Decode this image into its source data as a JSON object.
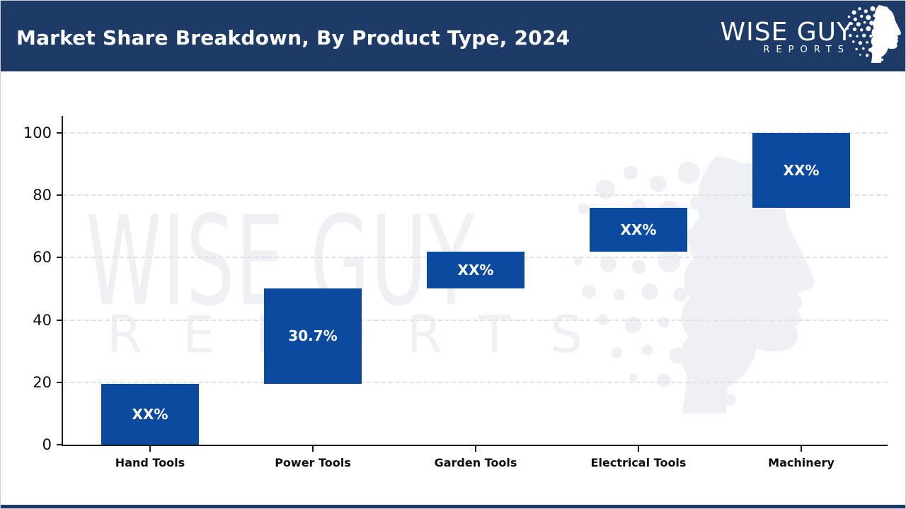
{
  "header": {
    "title": "Market Share Breakdown, By Product Type, 2024",
    "logo": {
      "line1": "WISE GUY",
      "line2": "REPORTS"
    }
  },
  "watermark": {
    "line1": "WISE GUY",
    "line2": "REPORTS"
  },
  "chart_data": {
    "type": "bar",
    "subtype": "floating-waterfall",
    "title": "Market Share Breakdown, By Product Type, 2024",
    "categories": [
      "Hand Tools",
      "Power Tools",
      "Garden Tools",
      "Electrical Tools",
      "Machinery"
    ],
    "segments": [
      {
        "category": "Hand Tools",
        "start": 0,
        "end": 19.5,
        "value": 19.5,
        "value_label": "XX%"
      },
      {
        "category": "Power Tools",
        "start": 19.5,
        "end": 50.2,
        "value": 30.7,
        "value_label": "30.7%"
      },
      {
        "category": "Garden Tools",
        "start": 50.2,
        "end": 61.8,
        "value": 11.6,
        "value_label": "XX%"
      },
      {
        "category": "Electrical Tools",
        "start": 61.8,
        "end": 75.9,
        "value": 14.1,
        "value_label": "XX%"
      },
      {
        "category": "Machinery",
        "start": 75.9,
        "end": 100,
        "value": 24.1,
        "value_label": "XX%"
      }
    ],
    "yticks": [
      0,
      20,
      40,
      60,
      80,
      100
    ],
    "ylim": [
      0,
      105.5
    ],
    "xlabel": "",
    "ylabel": "",
    "grid": "horizontal-dashed",
    "legend": "none",
    "bar_color": "#0b4a9f",
    "bar_label_color": "#ffffff"
  },
  "colors": {
    "header_bg": "#1e3a66",
    "bar": "#0b4a9f",
    "axis": "#1a1a1a",
    "gridline": "#e1e1e1",
    "watermark": "#eef0f4",
    "title_text": "#ffffff"
  }
}
